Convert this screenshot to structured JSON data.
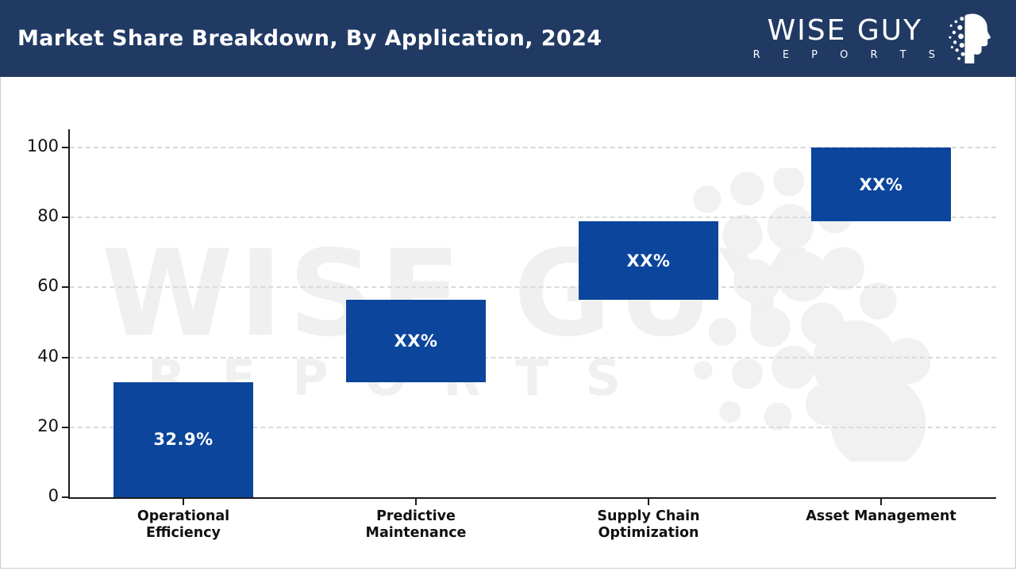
{
  "header": {
    "title": "Market Share Breakdown, By Application, 2024",
    "bg_color": "#213A64",
    "logo": {
      "name": "WISE GUY",
      "subname": "R E P O R T S"
    }
  },
  "watermark": {
    "line1": "WISE GUY",
    "line2": "REPORTS"
  },
  "chart_data": {
    "type": "bar",
    "subtype": "waterfall",
    "title": "Market Share Breakdown, By Application, 2024",
    "categories": [
      "Operational Efficiency",
      "Predictive Maintenance",
      "Supply Chain Optimization",
      "Asset Management"
    ],
    "bars": [
      {
        "category": "Operational\nEfficiency",
        "start": 0,
        "end": 32.9,
        "value": 32.9,
        "label": "32.9%"
      },
      {
        "category": "Predictive\nMaintenance",
        "start": 32.9,
        "end": 56.4,
        "value": 23.5,
        "label": "XX%"
      },
      {
        "category": "Supply Chain\nOptimization",
        "start": 56.4,
        "end": 78.9,
        "value": 22.5,
        "label": "XX%"
      },
      {
        "category": "Asset Management",
        "start": 78.9,
        "end": 100,
        "value": 21.1,
        "label": "XX%"
      }
    ],
    "ylim": [
      0,
      105
    ],
    "yticks": [
      0,
      20,
      40,
      60,
      80,
      100
    ],
    "grid": "horizontal dashed",
    "legend": "none",
    "bar_color": "#0B459C",
    "bar_label_color": "#FFFFFF",
    "axis_color": "#1C1C1C",
    "gridline_color": "#DADADA"
  }
}
